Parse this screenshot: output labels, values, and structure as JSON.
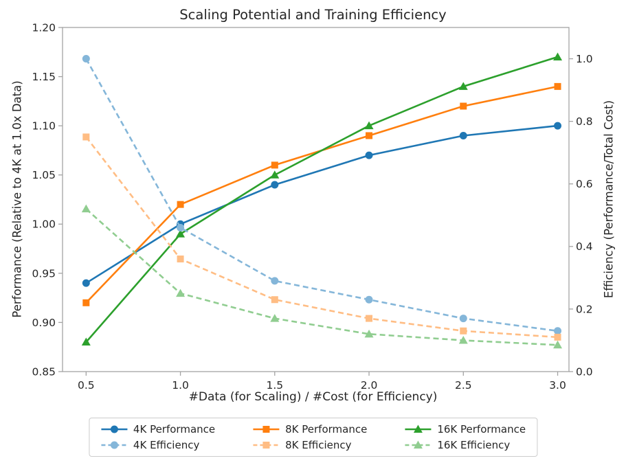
{
  "chart_data": {
    "type": "line",
    "title": "Scaling Potential and Training Efficiency",
    "xlabel": "#Data (for Scaling) / #Cost (for Efficiency)",
    "ylabel_left": "Performance (Relative to 4K at 1.0x Data)",
    "ylabel_right": "Efficiency (Performance/Total Cost)",
    "x": [
      0.5,
      1.0,
      1.5,
      2.0,
      2.5,
      3.0
    ],
    "x_ticks": [
      "0.5",
      "1.0",
      "1.5",
      "2.0",
      "2.5",
      "3.0"
    ],
    "x_tick_values": [
      0.5,
      1.0,
      1.5,
      2.0,
      2.5,
      3.0
    ],
    "x_lim": [
      0.375,
      3.06
    ],
    "y_left_ticks": [
      "0.85",
      "0.90",
      "0.95",
      "1.00",
      "1.05",
      "1.10",
      "1.15",
      "1.20"
    ],
    "y_left_tick_values": [
      0.85,
      0.9,
      0.95,
      1.0,
      1.05,
      1.1,
      1.15,
      1.2
    ],
    "y_left_lim": [
      0.85,
      1.2
    ],
    "y_right_ticks": [
      "0.0",
      "0.2",
      "0.4",
      "0.6",
      "0.8",
      "1.0"
    ],
    "y_right_tick_values": [
      0.0,
      0.2,
      0.4,
      0.6,
      0.8,
      1.0
    ],
    "y_right_lim": [
      0.0,
      1.1
    ],
    "grid": false,
    "legend_position": "bottom-center",
    "colors": {
      "spine": "#a3a3a3",
      "text": "#262626"
    },
    "series": [
      {
        "name": "4K Performance",
        "axis": "left",
        "line_style": "solid",
        "marker": "circle",
        "color": "#1f77b4",
        "values": [
          0.94,
          1.0,
          1.04,
          1.07,
          1.09,
          1.1
        ]
      },
      {
        "name": "8K Performance",
        "axis": "left",
        "line_style": "solid",
        "marker": "square",
        "color": "#ff7f0e",
        "values": [
          0.92,
          1.02,
          1.06,
          1.09,
          1.12,
          1.14
        ]
      },
      {
        "name": "16K Performance",
        "axis": "left",
        "line_style": "solid",
        "marker": "triangle",
        "color": "#2ca02c",
        "values": [
          0.88,
          0.99,
          1.05,
          1.1,
          1.14,
          1.17
        ]
      },
      {
        "name": "4K Efficiency",
        "axis": "right",
        "line_style": "dashed",
        "marker": "circle",
        "color": "#84b6d9",
        "values": [
          1.0,
          0.46,
          0.29,
          0.23,
          0.17,
          0.13
        ]
      },
      {
        "name": "8K Efficiency",
        "axis": "right",
        "line_style": "dashed",
        "marker": "square",
        "color": "#ffbd84",
        "values": [
          0.75,
          0.36,
          0.23,
          0.17,
          0.13,
          0.11
        ]
      },
      {
        "name": "16K Efficiency",
        "axis": "right",
        "line_style": "dashed",
        "marker": "triangle",
        "color": "#90cd90",
        "values": [
          0.52,
          0.25,
          0.17,
          0.12,
          0.1,
          0.085
        ]
      }
    ]
  }
}
